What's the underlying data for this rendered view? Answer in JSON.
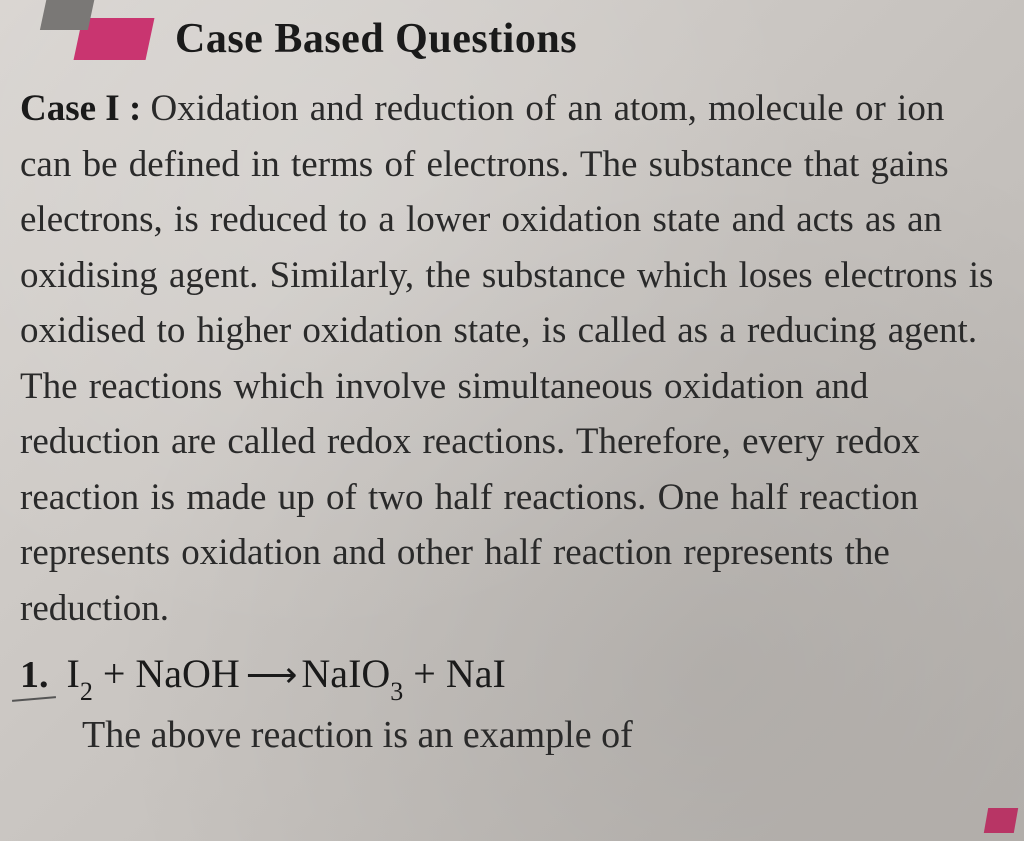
{
  "section_title": "Case Based Questions",
  "decoration": {
    "block_gray_color": "#7a7876",
    "block_magenta_color": "#c93570"
  },
  "case": {
    "label": "Case I :",
    "intro_text": "Oxidation and reduction of an atom, molecule or ion can be defined in terms of electrons. The substance that gains electrons, is reduced to a lower oxidation state and acts as an oxidising agent. Similarly, the substance which loses electrons is oxidised to higher oxidation state, is called as a reducing agent. The reactions which involve simultaneous oxidation and reduction are called redox reactions. Therefore, every redox reaction is made up of two half reactions. One half reaction represents oxidation and other half reaction represents the reduction."
  },
  "question": {
    "number": "1.",
    "equation": {
      "reactant1_base": "I",
      "reactant1_sub": "2",
      "plus1": " + ",
      "reactant2": "NaOH",
      "arrow": "⟶",
      "product1_base": "NaIO",
      "product1_sub": "3",
      "plus2": " + ",
      "product2": "NaI"
    },
    "prompt": "The above reaction is an example of"
  },
  "typography": {
    "title_fontsize": 42,
    "body_fontsize": 37,
    "equation_fontsize": 40,
    "font_family": "Georgia, serif",
    "text_color": "#2a2a2a",
    "heading_color": "#1a1a1a"
  },
  "background": {
    "base_color": "#c8c4c0",
    "gradient_light": "#d8d4d0",
    "gradient_dark": "#b8b4b0"
  }
}
